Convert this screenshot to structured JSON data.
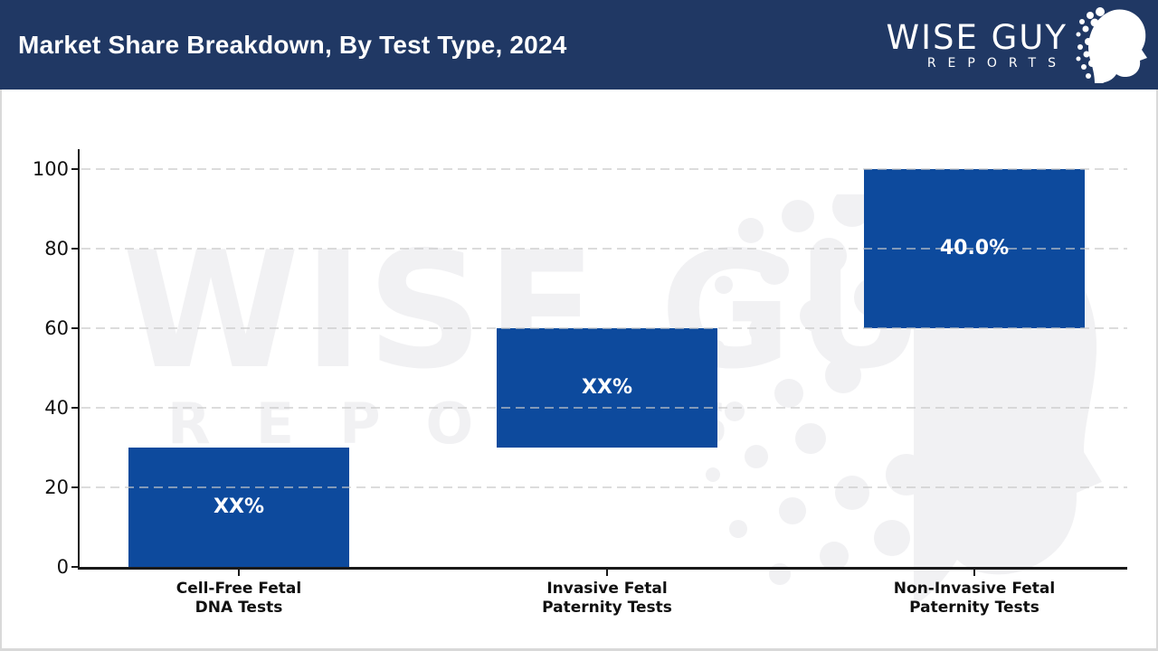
{
  "header": {
    "title": "Market Share Breakdown, By Test Type, 2024",
    "logo": {
      "line1": "WISE GUY",
      "line2": "REPORTS"
    }
  },
  "watermark": {
    "line1": "WISE GUY",
    "line2": "REPORTS"
  },
  "chart_data": {
    "type": "bar",
    "subtype": "floating-waterfall",
    "title": "Market Share Breakdown, By Test Type, 2024",
    "xlabel": "",
    "ylabel": "",
    "ylim": [
      0,
      105
    ],
    "y_ticks": [
      0,
      20,
      40,
      60,
      80,
      100
    ],
    "grid": "horizontal-dashed",
    "legend": "none",
    "bars": [
      {
        "category_lines": [
          "Cell-Free Fetal",
          "DNA Tests"
        ],
        "start": 0,
        "end": 30,
        "label": "XX%"
      },
      {
        "category_lines": [
          "Invasive Fetal",
          "Paternity Tests"
        ],
        "start": 30,
        "end": 60,
        "label": "XX%"
      },
      {
        "category_lines": [
          "Non-Invasive Fetal",
          "Paternity Tests"
        ],
        "start": 60,
        "end": 100,
        "label": "40.0%"
      }
    ]
  },
  "colors": {
    "header_bg": "#203864",
    "bar": "#0d4a9d",
    "grid": "#c8c8c8",
    "axis": "#1a1a1a",
    "tick_text": "#111111",
    "bar_label_text": "#ffffff",
    "watermark": "#f1f1f3",
    "panel_border": "#d9d9d9"
  }
}
